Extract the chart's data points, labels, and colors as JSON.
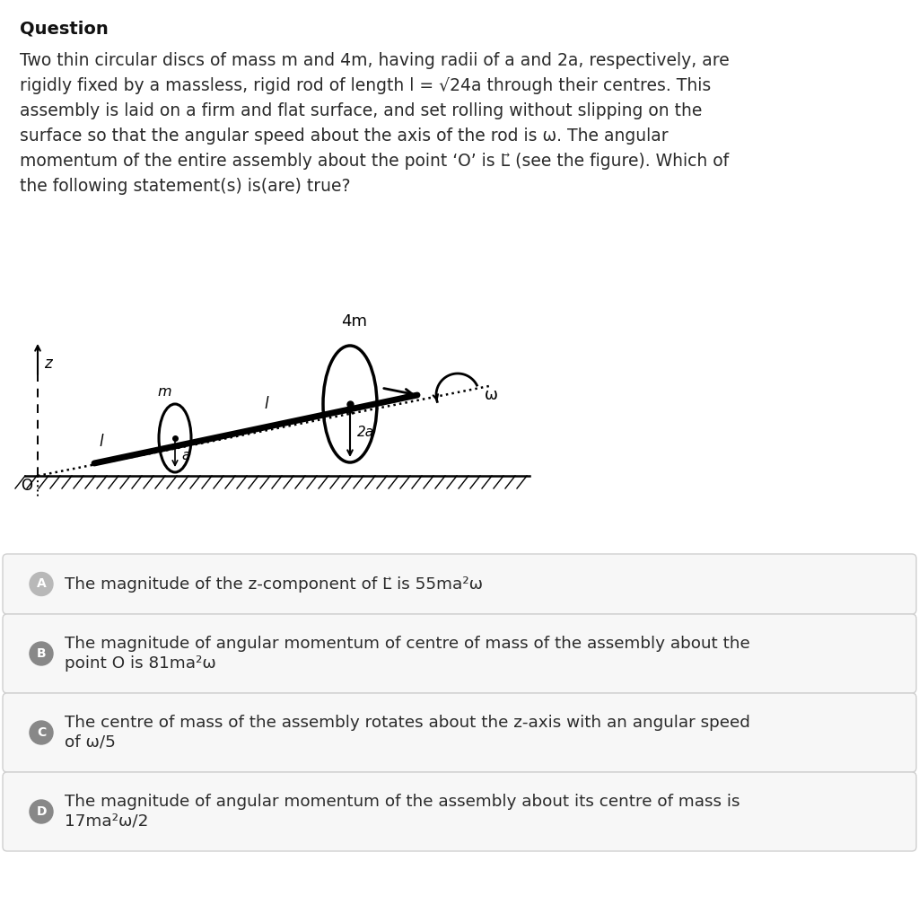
{
  "background_color": "#ffffff",
  "title": "Question",
  "para_line1": "Two thin circular discs of mass m and 4m, having radii of a and 2a, respectively, are",
  "para_line2": "rigidly fixed by a massless, rigid rod of length l = √24a through their centres. This",
  "para_line3": "assembly is laid on a firm and flat surface, and set rolling without slipping on the",
  "para_line4": "surface so that the angular speed about the axis of the rod is ω. The angular",
  "para_line5": "momentum of the entire assembly about the point ‘O’ is L⃗ (see the figure). Which of",
  "para_line6": "the following statement(s) is(are) true?",
  "option_A": "The magnitude of the z-component of L⃗ is 55ma²ω",
  "option_B1": "The magnitude of angular momentum of centre of mass of the assembly about the",
  "option_B2": "point O is 81ma²ω",
  "option_C1": "The centre of mass of the assembly rotates about the z-axis with an angular speed",
  "option_C2": "of ω/5",
  "option_D1": "The magnitude of angular momentum of the assembly about its centre of mass is",
  "option_D2": "17ma²ω/2",
  "circle_color_A": "#b8b8b8",
  "circle_color_BCD": "#888888",
  "box_bg": "#f7f7f7",
  "box_border": "#d0d0d0",
  "text_color": "#2a2a2a",
  "title_color": "#111111"
}
